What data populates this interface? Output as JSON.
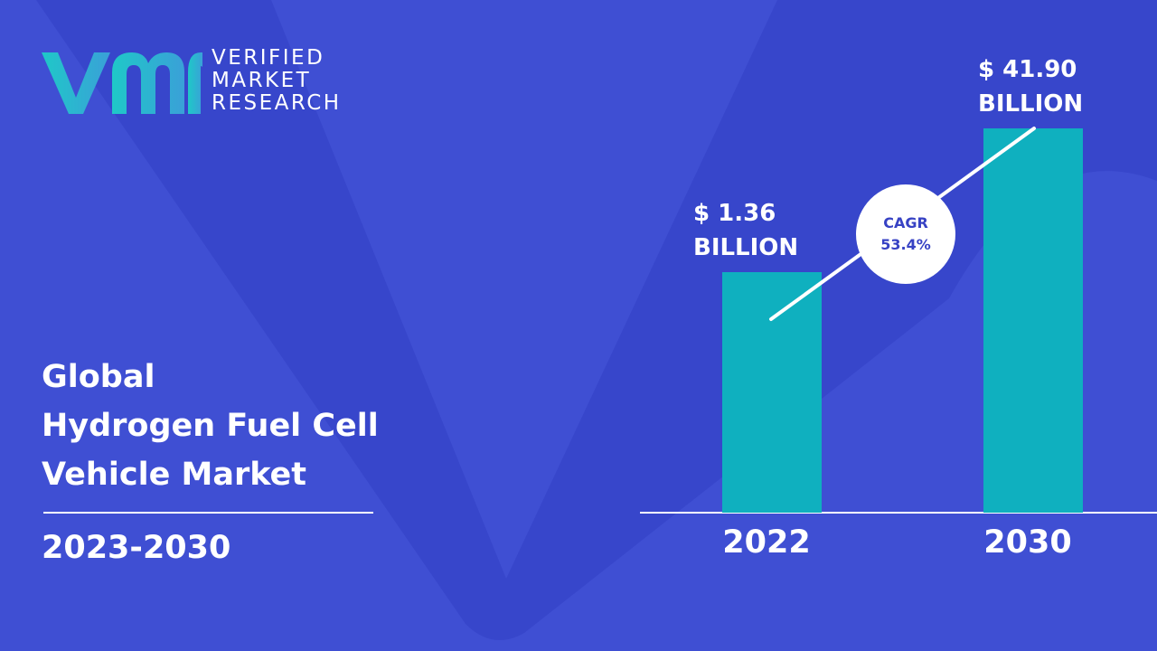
{
  "colors": {
    "background": "#3f4fd3",
    "background_shape": "#3644c9",
    "bar": "#0fb0bf",
    "logo_gradient_start": "#1fc8c8",
    "logo_gradient_end": "#3aa0d8",
    "text": "#ffffff",
    "cagr_text": "#3742c4"
  },
  "logo": {
    "icon": "vmr-logo-mark",
    "lines": [
      "VERIFIED",
      "MARKET",
      "RESEARCH"
    ]
  },
  "title": {
    "lines": [
      "Global",
      "Hydrogen Fuel Cell",
      "Vehicle Market"
    ],
    "period": "2023-2030"
  },
  "cagr": {
    "label": "CAGR",
    "value": "53.4%"
  },
  "chart_data": {
    "type": "bar",
    "categories": [
      "2022",
      "2030"
    ],
    "values": [
      1.36,
      41.9
    ],
    "value_labels": [
      [
        "$ 1.36",
        "BILLION"
      ],
      [
        "$ 41.90",
        "BILLION"
      ]
    ],
    "unit": "USD billion",
    "legend": "none",
    "grid": false,
    "note": "bar heights in the original are illustrative, not proportional to values"
  }
}
